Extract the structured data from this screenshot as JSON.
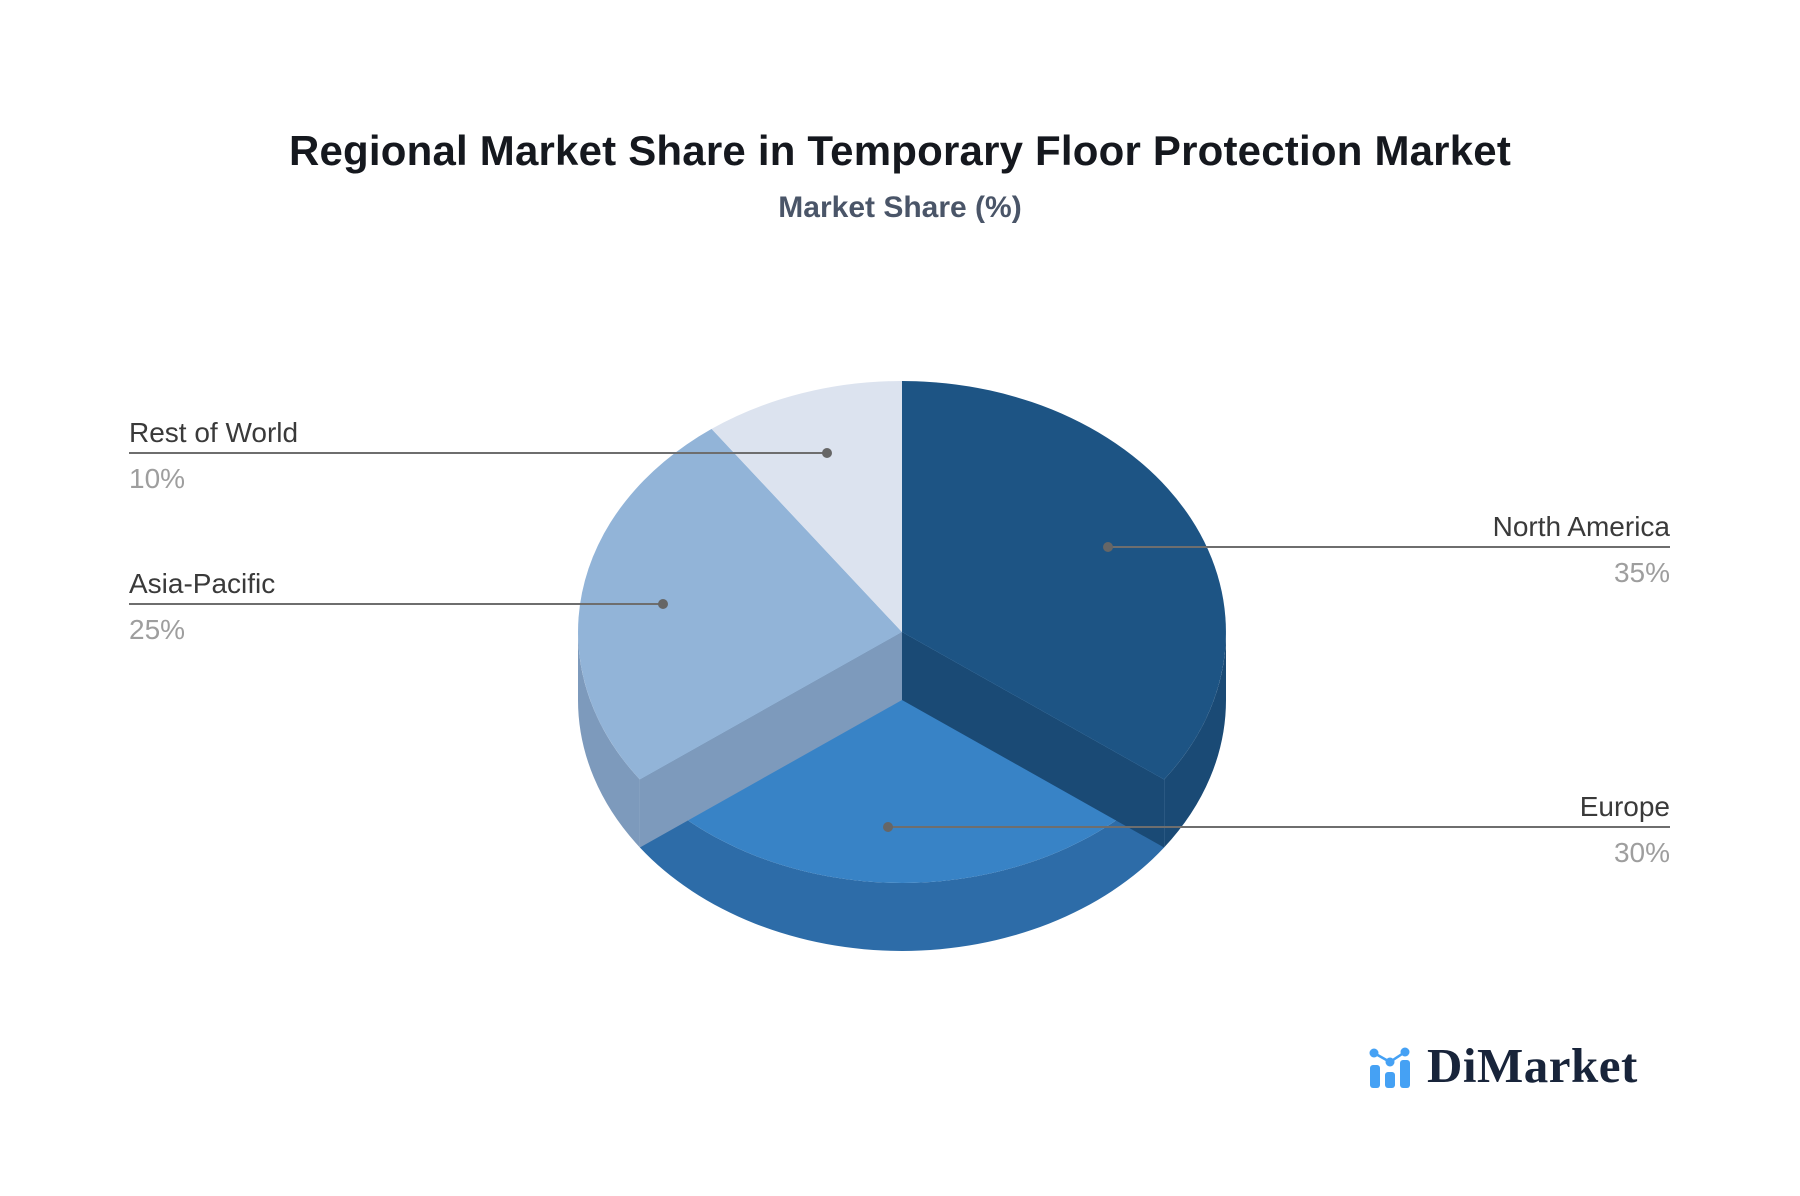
{
  "chart_data": {
    "type": "pie",
    "style": "pie3d",
    "title": "Regional Market Share in Temporary Floor Protection Market",
    "subtitle": "Market Share (%)",
    "start_angle_deg": 90,
    "clockwise": true,
    "unit": "%",
    "slices": [
      {
        "label": "North America",
        "value": 35,
        "pct_label": "35%",
        "color": "#1d5484",
        "side_color": "#1a4a75",
        "label_side": "right"
      },
      {
        "label": "Europe",
        "value": 30,
        "pct_label": "30%",
        "color": "#3883c6",
        "side_color": "#2d6ca8",
        "label_side": "right"
      },
      {
        "label": "Asia-Pacific",
        "value": 25,
        "pct_label": "25%",
        "color": "#92b4d8",
        "side_color": "#7d9abc",
        "label_side": "left"
      },
      {
        "label": "Rest of World",
        "value": 10,
        "pct_label": "10%",
        "color": "#dce3ef",
        "side_color": "#c9d2e2",
        "label_side": "left"
      }
    ],
    "legend": "none",
    "grid": false
  },
  "branding": {
    "name": "DiMarket",
    "icon": "bar-line-chart-icon"
  },
  "colors": {
    "background": "#ffffff",
    "title_text": "#15181e",
    "subtitle_text": "#4a5568",
    "label_text": "#3a3a3a",
    "pct_text": "#9e9e9e",
    "leader_line": "#6e6e6e",
    "leader_dot": "#666666",
    "logo_blue": "#45a1f4",
    "logo_navy": "#18243a"
  }
}
